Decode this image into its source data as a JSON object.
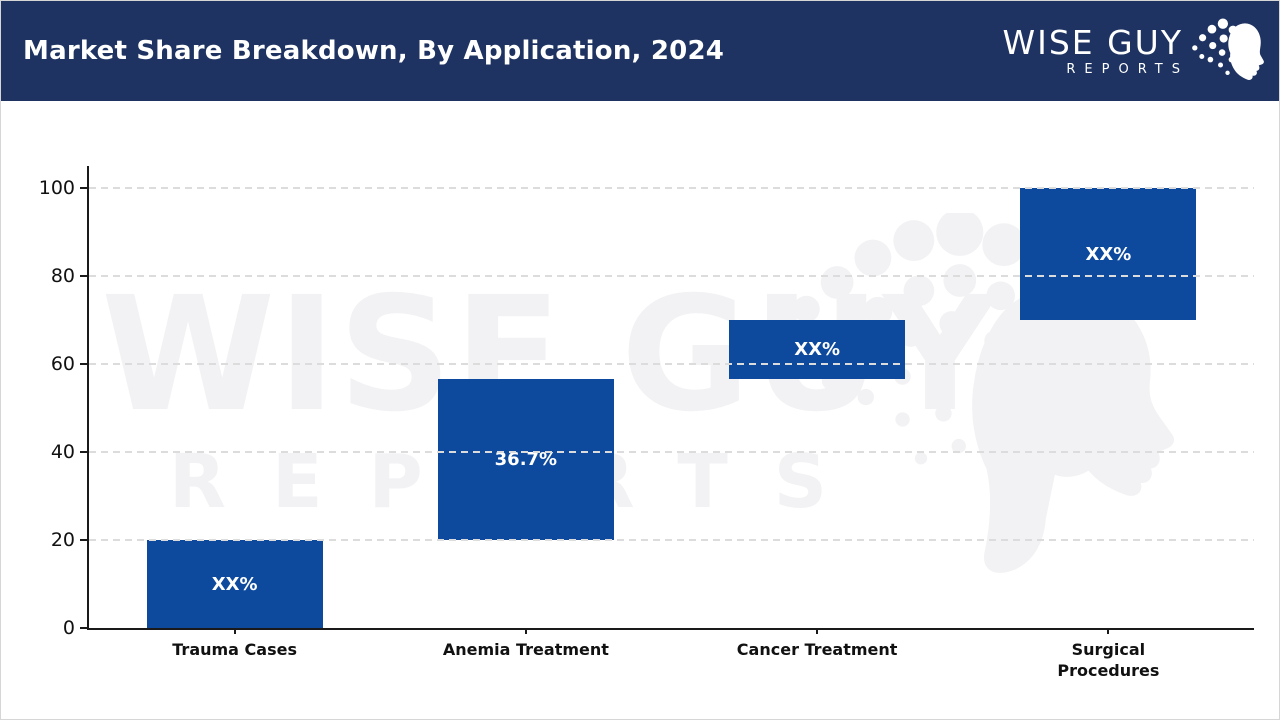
{
  "header": {
    "title": "Market Share Breakdown, By Application, 2024",
    "logo": {
      "line1": "WISE GUY",
      "line2": "REPORTS"
    }
  },
  "watermark": {
    "line1": "WISE GUY",
    "line2": "REPORTS"
  },
  "chart_data": {
    "type": "bar",
    "subtype": "waterfall-floating-bars",
    "title": "Market Share Breakdown, By Application, 2024",
    "categories": [
      "Trauma Cases",
      "Anemia Treatment",
      "Cancer Treatment",
      "Surgical Procedures"
    ],
    "segments": [
      {
        "category": "Trauma Cases",
        "start": 0,
        "end": 20,
        "label": "XX%"
      },
      {
        "category": "Anemia Treatment",
        "start": 20,
        "end": 56.7,
        "label": "36.7%"
      },
      {
        "category": "Cancer Treatment",
        "start": 56.7,
        "end": 70,
        "label": "XX%"
      },
      {
        "category": "Surgical Procedures",
        "start": 70,
        "end": 100,
        "label": "XX%"
      }
    ],
    "yticks": [
      0,
      20,
      40,
      60,
      80,
      100
    ],
    "ylim": [
      0,
      105
    ],
    "xlabel": "",
    "ylabel": "",
    "grid": "dashed-horizontal-above-bars",
    "legend": "none",
    "bar_color": "#0d4a9e",
    "bar_label_color": "#ffffff"
  },
  "colors": {
    "header_bg": "#1e3361",
    "bar": "#0d4a9e",
    "grid": "#dcdcdc",
    "axis": "#1a1a1a",
    "watermark": "#f2f2f4",
    "tick_text": "#111111"
  }
}
